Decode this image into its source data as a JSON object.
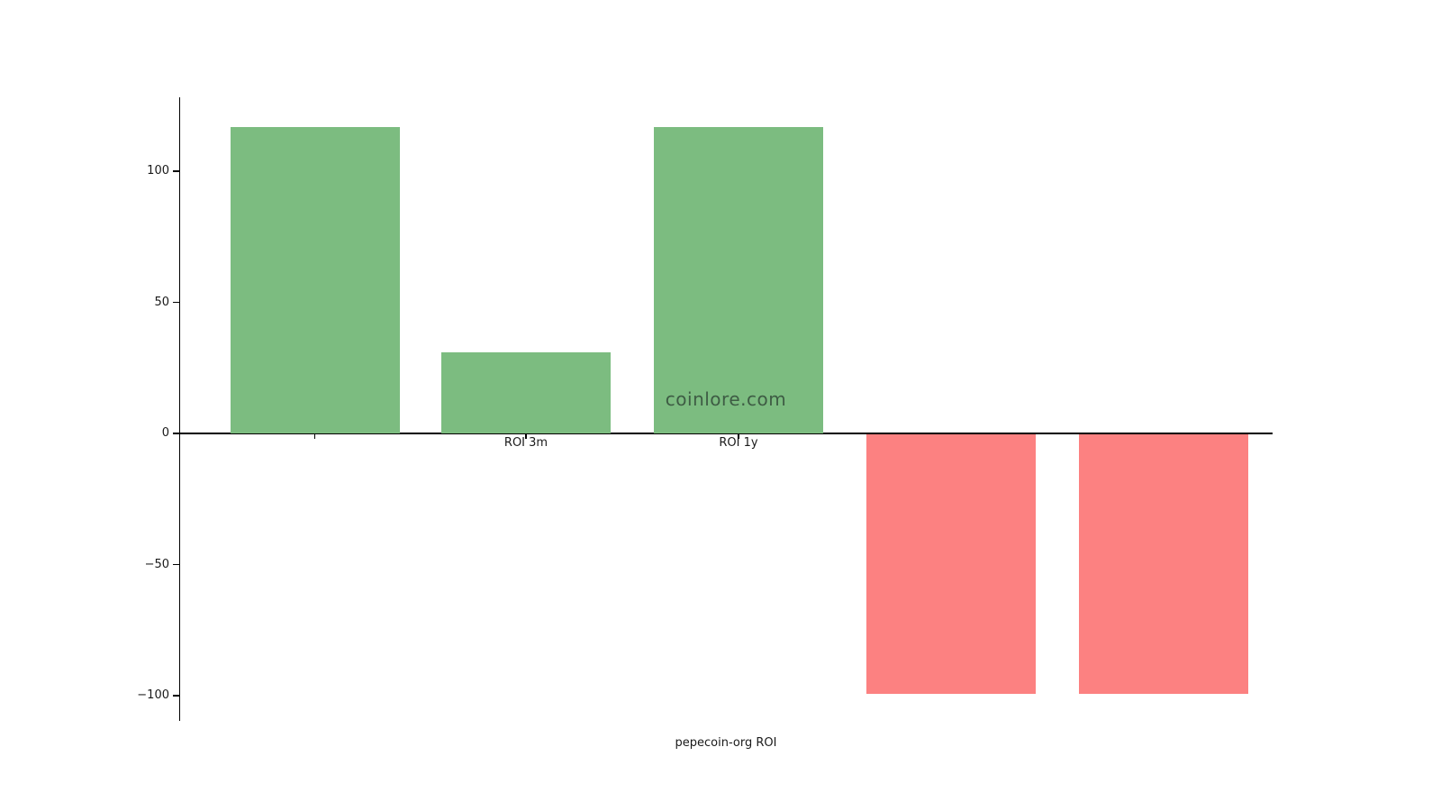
{
  "chart_data": {
    "type": "bar",
    "title": "pepecoin-org ROI",
    "categories": [
      "",
      "ROI 3m",
      "ROI 1y",
      "",
      ""
    ],
    "values": [
      117,
      31,
      117,
      -99,
      -99
    ],
    "bar_colors": [
      "#7cbc80",
      "#7cbc80",
      "#7cbc80",
      "#fc8181",
      "#fc8181"
    ],
    "positive_color": "#7cbc80",
    "negative_color": "#fc8181",
    "xlabel": "",
    "ylabel": "",
    "ylim": [
      -110,
      128
    ],
    "ytick_values": [
      100,
      50,
      0,
      -50,
      -100
    ],
    "ytick_labels": [
      "100",
      "50",
      "0",
      "−50",
      "−100"
    ],
    "grid": "off",
    "legend": "none"
  },
  "watermark": {
    "text": "coinlore.com",
    "color": "#3e5c44"
  },
  "background_color": "#ffffff",
  "text_color": "#1a1a1a"
}
